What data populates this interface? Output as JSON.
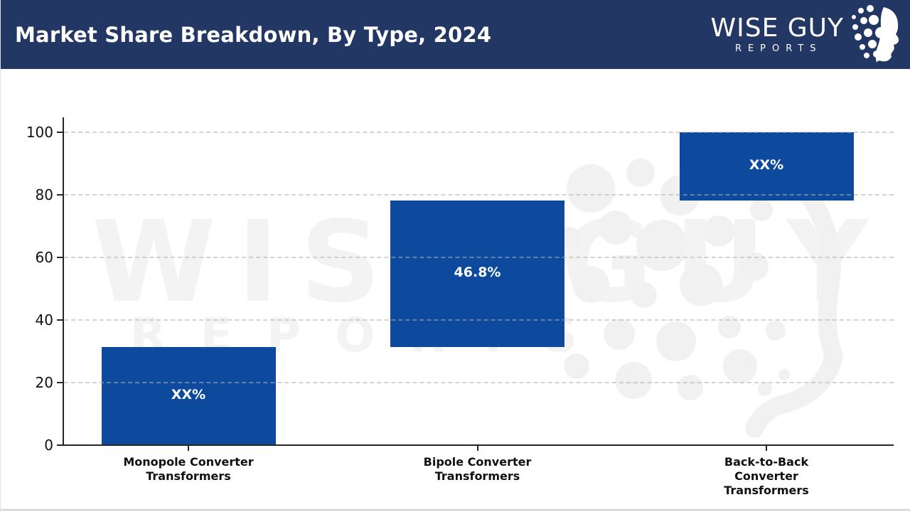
{
  "header": {
    "title": "Market Share Breakdown, By Type, 2024",
    "logo": {
      "name": "WISE GUY",
      "subtitle": "REPORTS"
    }
  },
  "watermark": {
    "line1": "WISE GUY",
    "line2": "REPORTS"
  },
  "chart_data": {
    "type": "bar",
    "subtype": "waterfall",
    "title": "Market Share Breakdown, By Type, 2024",
    "xlabel": "",
    "ylabel": "",
    "ylim": [
      0,
      100
    ],
    "yticks": [
      0,
      20,
      40,
      60,
      80,
      100
    ],
    "grid": "horizontal-dashed",
    "legend_position": "none",
    "categories": [
      "Monopole Converter Transformers",
      "Bipole Converter Transformers",
      "Back-to-Back Converter Transformers"
    ],
    "category_lines": [
      [
        "Monopole Converter",
        "Transformers"
      ],
      [
        "Bipole Converter",
        "Transformers"
      ],
      [
        "Back-to-Back",
        "Converter",
        "Transformers"
      ]
    ],
    "segments": [
      {
        "category": "Monopole Converter Transformers",
        "start": 0,
        "end": 31.4,
        "value": 31.4,
        "label": "XX%"
      },
      {
        "category": "Bipole Converter Transformers",
        "start": 31.4,
        "end": 78.2,
        "value": 46.8,
        "label": "46.8%"
      },
      {
        "category": "Back-to-Back Converter Transformers",
        "start": 78.2,
        "end": 100,
        "value": 21.8,
        "label": "XX%"
      }
    ]
  },
  "colors": {
    "header_bg": "#233764",
    "bar": "#0d4a9e",
    "axis": "#262626",
    "grid": "#d9d9d9",
    "text": "#111111",
    "watermark": "#f3f3f3"
  }
}
